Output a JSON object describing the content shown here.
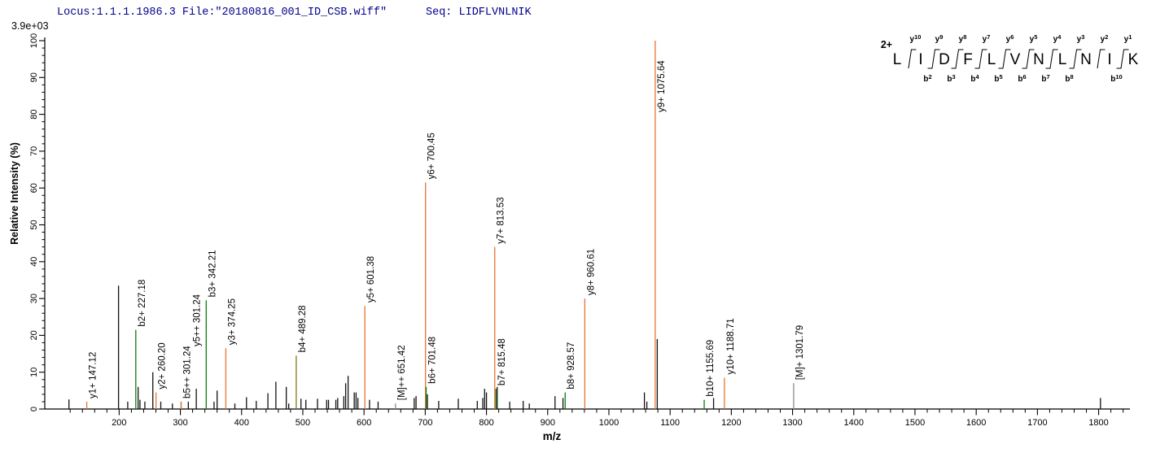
{
  "header": {
    "locus_file": "Locus:1.1.1.1986.3 File:\"20180816_001_ID_CSB.wiff\"",
    "seq_label": "Seq: LIDFLVNLNIK"
  },
  "chart_data": {
    "type": "bar",
    "subtype": "ms2-fragmentation-spectrum",
    "title": "",
    "xlabel": "m/z",
    "ylabel": "Relative  Intensity (%)",
    "intensity_scale": "3.9e+03",
    "x_axis": {
      "min": 80,
      "max": 1845,
      "major_ticks": [
        200,
        300,
        400,
        500,
        600,
        700,
        800,
        900,
        1000,
        1100,
        1200,
        1300,
        1400,
        1500,
        1600,
        1700,
        1800
      ],
      "minor_step": 20
    },
    "y_axis": {
      "min": 0,
      "max": 100,
      "major_ticks": [
        0,
        10,
        20,
        30,
        40,
        50,
        60,
        70,
        80,
        90,
        100
      ],
      "minor_step": 2
    },
    "grid": false,
    "legend": false,
    "colors": {
      "y_ion": "#E87532",
      "b_ion": "#0B7A0B",
      "precursor": "#8C8C8C",
      "unassigned": "#111111",
      "axis": "#000000",
      "b4_line": "#7D7D10"
    },
    "peaks": [
      {
        "mz": 118,
        "intensity": 2.6
      },
      {
        "mz": 147.12,
        "intensity": 2,
        "label": "y1+ 147.12",
        "type": "y"
      },
      {
        "mz": 199,
        "intensity": 33.5
      },
      {
        "mz": 214,
        "intensity": 2
      },
      {
        "mz": 227.18,
        "intensity": 21.5,
        "label": "b2+ 227.18",
        "type": "b"
      },
      {
        "mz": 231,
        "intensity": 6
      },
      {
        "mz": 234,
        "intensity": 2.5
      },
      {
        "mz": 242,
        "intensity": 2
      },
      {
        "mz": 255,
        "intensity": 10
      },
      {
        "mz": 260.2,
        "intensity": 4.5,
        "label": "y2+ 260.20",
        "type": "y"
      },
      {
        "mz": 268,
        "intensity": 2
      },
      {
        "mz": 287,
        "intensity": 1.5
      },
      {
        "mz": 301.24,
        "intensity": 2,
        "label": "b5++ 301.24",
        "type": "b"
      },
      {
        "mz": 301.24,
        "intensity": 2,
        "label": "y5++ 301.24",
        "type": "y",
        "label_dy": -64,
        "label_dx": 23
      },
      {
        "mz": 313,
        "intensity": 2
      },
      {
        "mz": 326,
        "intensity": 5.5
      },
      {
        "mz": 342.21,
        "intensity": 29.5,
        "label": "b3+ 342.21",
        "type": "b"
      },
      {
        "mz": 355,
        "intensity": 2
      },
      {
        "mz": 360,
        "intensity": 5
      },
      {
        "mz": 374.25,
        "intensity": 16.5,
        "label": "y3+ 374.25",
        "type": "y"
      },
      {
        "mz": 389,
        "intensity": 1.5
      },
      {
        "mz": 408,
        "intensity": 3.2
      },
      {
        "mz": 424,
        "intensity": 2.2
      },
      {
        "mz": 443,
        "intensity": 4.3
      },
      {
        "mz": 456,
        "intensity": 7.4
      },
      {
        "mz": 473,
        "intensity": 6
      },
      {
        "mz": 477,
        "intensity": 1.5
      },
      {
        "mz": 489.28,
        "intensity": 14.5,
        "label": "b4+ 489.28",
        "type": "b",
        "line_color": "#7D7D10"
      },
      {
        "mz": 497,
        "intensity": 2.8
      },
      {
        "mz": 505,
        "intensity": 2.5
      },
      {
        "mz": 524,
        "intensity": 2.8
      },
      {
        "mz": 539,
        "intensity": 2.5
      },
      {
        "mz": 542,
        "intensity": 2.5
      },
      {
        "mz": 554,
        "intensity": 2.5
      },
      {
        "mz": 557,
        "intensity": 3
      },
      {
        "mz": 567,
        "intensity": 3.5
      },
      {
        "mz": 570,
        "intensity": 7
      },
      {
        "mz": 574,
        "intensity": 9
      },
      {
        "mz": 584,
        "intensity": 4.5
      },
      {
        "mz": 587,
        "intensity": 4.5
      },
      {
        "mz": 590,
        "intensity": 3
      },
      {
        "mz": 601.38,
        "intensity": 28,
        "label": "y5+ 601.38",
        "type": "y"
      },
      {
        "mz": 609,
        "intensity": 2.5
      },
      {
        "mz": 623,
        "intensity": 2
      },
      {
        "mz": 651.42,
        "intensity": 1.5,
        "label": "[M]++ 651.42",
        "type": "precursor"
      },
      {
        "mz": 682,
        "intensity": 3
      },
      {
        "mz": 685,
        "intensity": 3.5
      },
      {
        "mz": 700.45,
        "intensity": 61.5,
        "label": "y6+ 700.45",
        "type": "y"
      },
      {
        "mz": 701.48,
        "intensity": 6,
        "label": "b6+ 701.48",
        "type": "b"
      },
      {
        "mz": 703.5,
        "intensity": 4
      },
      {
        "mz": 722,
        "intensity": 2.2
      },
      {
        "mz": 754,
        "intensity": 2.8
      },
      {
        "mz": 785,
        "intensity": 2.2
      },
      {
        "mz": 794,
        "intensity": 3
      },
      {
        "mz": 797,
        "intensity": 5.5
      },
      {
        "mz": 800,
        "intensity": 4.5
      },
      {
        "mz": 813.53,
        "intensity": 44,
        "label": "y7+ 813.53",
        "type": "y"
      },
      {
        "mz": 815.48,
        "intensity": 5.5,
        "label": "b7+ 815.48",
        "type": "b"
      },
      {
        "mz": 817.5,
        "intensity": 6
      },
      {
        "mz": 838,
        "intensity": 2
      },
      {
        "mz": 860,
        "intensity": 2.2
      },
      {
        "mz": 870,
        "intensity": 1.5
      },
      {
        "mz": 912,
        "intensity": 3.5
      },
      {
        "mz": 925,
        "intensity": 3
      },
      {
        "mz": 928.57,
        "intensity": 4.5,
        "label": "b8+ 928.57",
        "type": "b"
      },
      {
        "mz": 960.61,
        "intensity": 30,
        "label": "y8+ 960.61",
        "type": "y"
      },
      {
        "mz": 1058,
        "intensity": 4.5
      },
      {
        "mz": 1062,
        "intensity": 2
      },
      {
        "mz": 1075.64,
        "intensity": 100,
        "label": "y9+ 1075.64",
        "type": "y",
        "label_inside": true
      },
      {
        "mz": 1079,
        "intensity": 19
      },
      {
        "mz": 1155.69,
        "intensity": 2.5,
        "label": "b10+ 1155.69",
        "type": "b"
      },
      {
        "mz": 1171,
        "intensity": 3
      },
      {
        "mz": 1188.71,
        "intensity": 8.5,
        "label": "y10+ 1188.71",
        "type": "y"
      },
      {
        "mz": 1301.79,
        "intensity": 7,
        "label": "[M]+ 1301.79",
        "type": "precursor"
      },
      {
        "mz": 1803,
        "intensity": 3
      }
    ]
  },
  "annotation": {
    "charge": "2+",
    "charge_color": "#2424CC",
    "residues": [
      "L",
      "I",
      "D",
      "F",
      "L",
      "V",
      "N",
      "L",
      "N",
      "I",
      "K"
    ],
    "y_ions": [
      {
        "gap": 1,
        "label": "y10"
      },
      {
        "gap": 2,
        "label": "y9"
      },
      {
        "gap": 3,
        "label": "y8"
      },
      {
        "gap": 4,
        "label": "y7"
      },
      {
        "gap": 5,
        "label": "y6"
      },
      {
        "gap": 6,
        "label": "y5"
      },
      {
        "gap": 7,
        "label": "y4"
      },
      {
        "gap": 8,
        "label": "y3"
      },
      {
        "gap": 9,
        "label": "y2"
      },
      {
        "gap": 10,
        "label": "y1"
      }
    ],
    "b_ions": [
      {
        "gap": 2,
        "label": "b2"
      },
      {
        "gap": 3,
        "label": "b3"
      },
      {
        "gap": 4,
        "label": "b4"
      },
      {
        "gap": 5,
        "label": "b5"
      },
      {
        "gap": 6,
        "label": "b6"
      },
      {
        "gap": 7,
        "label": "b7"
      },
      {
        "gap": 8,
        "label": "b8"
      },
      {
        "gap": 10,
        "label": "b10"
      }
    ]
  }
}
